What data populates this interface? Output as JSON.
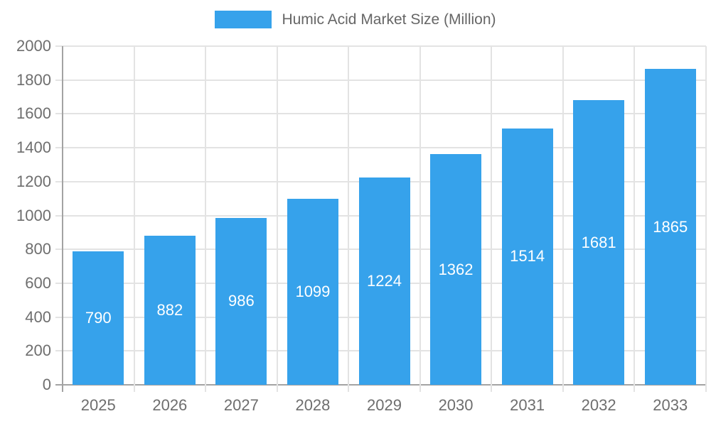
{
  "chart_data": {
    "type": "bar",
    "title": "Humic Acid Market Size (Million)",
    "legend": [
      "Humic Acid Market Size (Million)"
    ],
    "legend_position": "top",
    "categories": [
      "2025",
      "2026",
      "2027",
      "2028",
      "2029",
      "2030",
      "2031",
      "2032",
      "2033"
    ],
    "values": [
      790,
      882,
      986,
      1099,
      1224,
      1362,
      1514,
      1681,
      1865
    ],
    "value_labels_shown": true,
    "xlabel": "",
    "ylabel": "",
    "ylim": [
      0,
      2000
    ],
    "yticks": [
      0,
      200,
      400,
      600,
      800,
      1000,
      1200,
      1400,
      1600,
      1800,
      2000
    ],
    "grid": "on"
  },
  "colors": {
    "bar": "#36A2EB",
    "grid_line": "#E3E3E3",
    "axis_line": "#A3A3A3",
    "axis_text": "#6E6E6E",
    "legend_text": "#666666",
    "bar_label_text": "#FFFFFF",
    "background": "#FFFFFF"
  }
}
